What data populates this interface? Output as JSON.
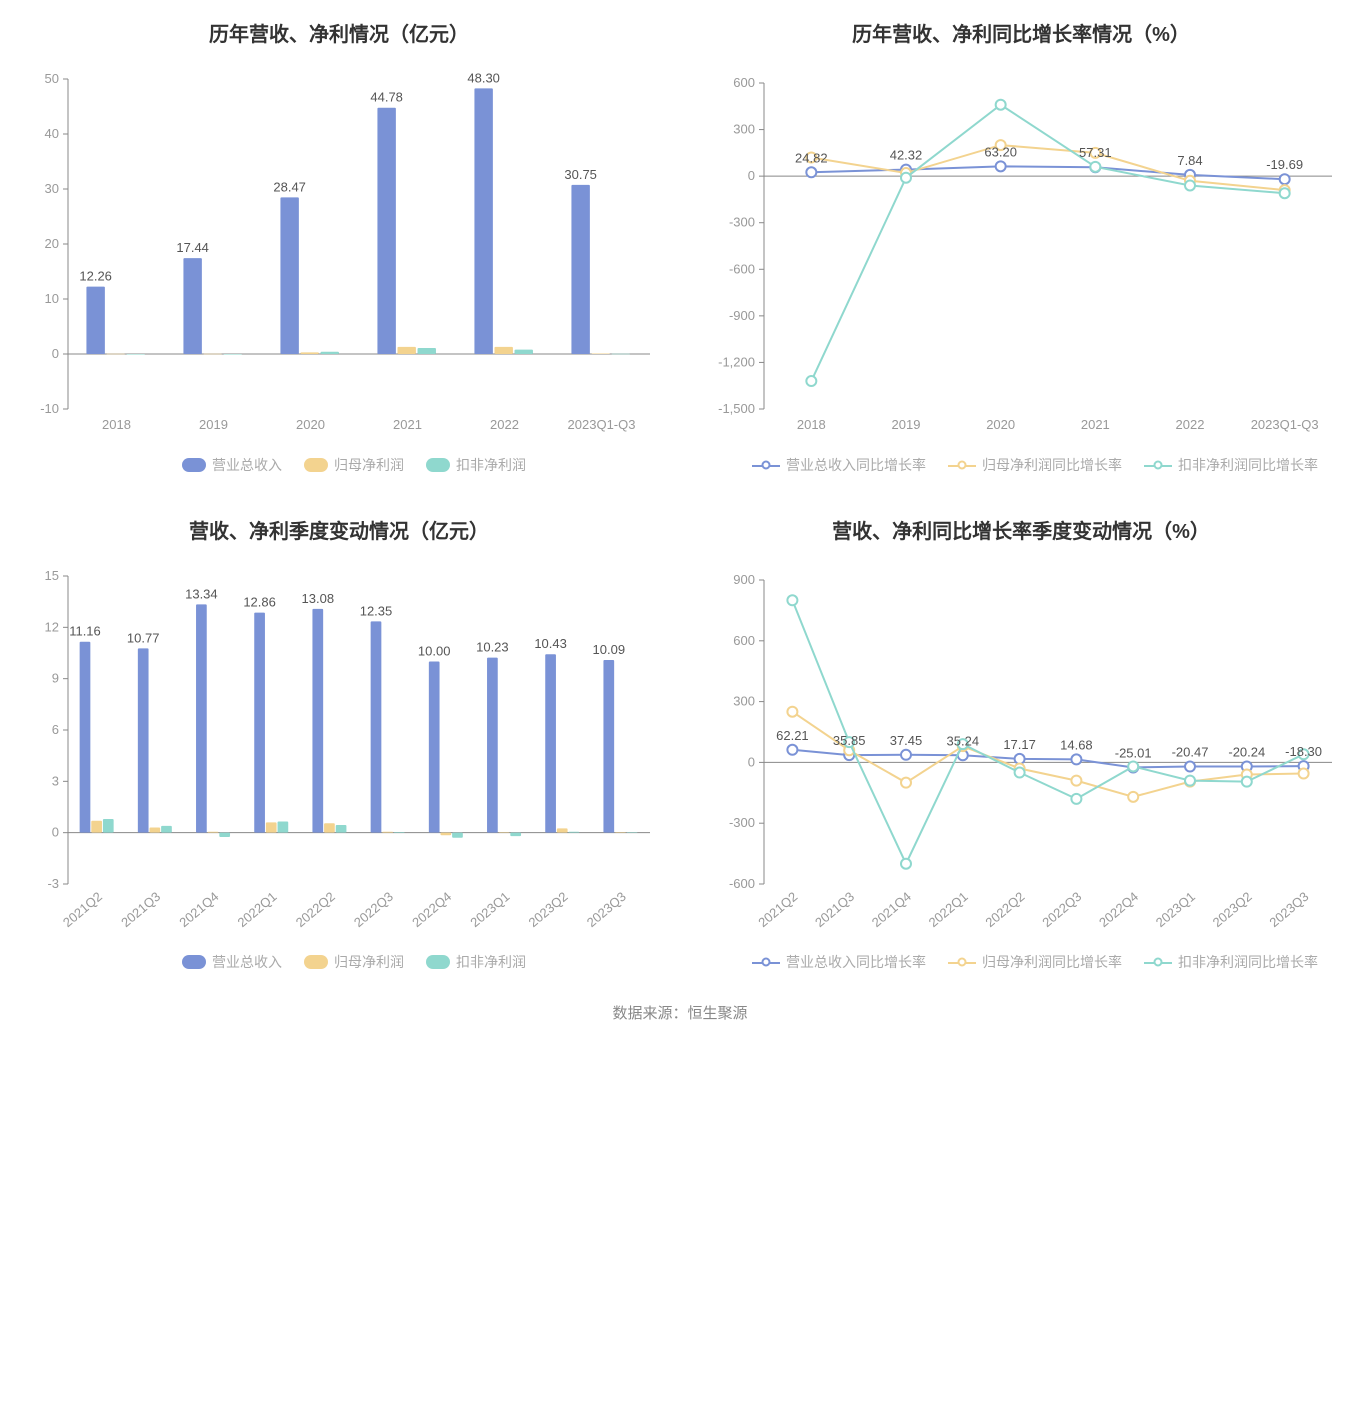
{
  "footer": "数据来源：恒生聚源",
  "colors": {
    "bar1": "#7a92d6",
    "bar2": "#f3d38f",
    "bar3": "#8fd8ce",
    "line1": "#7a92d6",
    "line2": "#f3d38f",
    "line3": "#8fd8ce",
    "axis": "#888888",
    "tick": "#999999",
    "text": "#555555",
    "bg": "#ffffff"
  },
  "chart1": {
    "title": "历年营收、净利情况（亿元）",
    "type": "bar",
    "categories": [
      "2018",
      "2019",
      "2020",
      "2021",
      "2022",
      "2023Q1-Q3"
    ],
    "series": [
      {
        "name": "营业总收入",
        "color_key": "bar1",
        "values": [
          12.26,
          17.44,
          28.47,
          44.78,
          48.3,
          30.75
        ]
      },
      {
        "name": "归母净利润",
        "color_key": "bar2",
        "values": [
          0.05,
          0.05,
          0.3,
          1.3,
          1.3,
          0.1
        ]
      },
      {
        "name": "扣非净利润",
        "color_key": "bar3",
        "values": [
          -0.05,
          -0.05,
          0.4,
          1.1,
          0.8,
          0.05
        ]
      }
    ],
    "labels": [
      "12.26",
      "17.44",
      "28.47",
      "44.78",
      "48.30",
      "30.75"
    ],
    "ylim": [
      -10,
      50
    ],
    "yticks": [
      -10,
      0,
      10,
      20,
      30,
      40,
      50
    ],
    "bar_cluster_width": 0.62,
    "label_fontsize": 13,
    "title_fontsize": 20
  },
  "chart2": {
    "title": "历年营收、净利同比增长率情况（%）",
    "type": "line",
    "categories": [
      "2018",
      "2019",
      "2020",
      "2021",
      "2022",
      "2023Q1-Q3"
    ],
    "series": [
      {
        "name": "营业总收入同比增长率",
        "color_key": "line1",
        "values": [
          24.82,
          42.32,
          63.2,
          57.31,
          7.84,
          -19.69
        ]
      },
      {
        "name": "归母净利润同比增长率",
        "color_key": "line2",
        "values": [
          120,
          20,
          200,
          150,
          -30,
          -90
        ]
      },
      {
        "name": "扣非净利润同比增长率",
        "color_key": "line3",
        "values": [
          -1320,
          -10,
          460,
          60,
          -60,
          -110
        ]
      }
    ],
    "labels": [
      "24.82",
      "42.32",
      "63.20",
      "57.31",
      "7.84",
      "-19.69"
    ],
    "ylim": [
      -1500,
      600
    ],
    "yticks": [
      -1500,
      -1200,
      -900,
      -600,
      -300,
      0,
      300,
      600
    ],
    "marker_radius": 5,
    "line_width": 2,
    "label_fontsize": 13,
    "title_fontsize": 20
  },
  "chart3": {
    "title": "营收、净利季度变动情况（亿元）",
    "type": "bar",
    "categories": [
      "2021Q2",
      "2021Q3",
      "2021Q4",
      "2022Q1",
      "2022Q2",
      "2022Q3",
      "2022Q4",
      "2023Q1",
      "2023Q2",
      "2023Q3"
    ],
    "rotate_x": true,
    "series": [
      {
        "name": "营业总收入",
        "color_key": "bar1",
        "values": [
          11.16,
          10.77,
          13.34,
          12.86,
          13.08,
          12.35,
          10.0,
          10.23,
          10.43,
          10.09
        ]
      },
      {
        "name": "归母净利润",
        "color_key": "bar2",
        "values": [
          0.7,
          0.3,
          0.05,
          0.6,
          0.55,
          0.05,
          -0.15,
          0.03,
          0.25,
          0.03
        ]
      },
      {
        "name": "扣非净利润",
        "color_key": "bar3",
        "values": [
          0.8,
          0.4,
          -0.25,
          0.65,
          0.45,
          0.04,
          -0.3,
          -0.2,
          0.05,
          0.02
        ]
      }
    ],
    "labels": [
      "11.16",
      "10.77",
      "13.34",
      "12.86",
      "13.08",
      "12.35",
      "10.00",
      "10.23",
      "10.43",
      "10.09"
    ],
    "ylim": [
      -3,
      15
    ],
    "yticks": [
      -3,
      0,
      3,
      6,
      9,
      12,
      15
    ],
    "bar_cluster_width": 0.6,
    "label_fontsize": 13,
    "title_fontsize": 20
  },
  "chart4": {
    "title": "营收、净利同比增长率季度变动情况（%）",
    "type": "line",
    "categories": [
      "2021Q2",
      "2021Q3",
      "2021Q4",
      "2022Q1",
      "2022Q2",
      "2022Q3",
      "2022Q4",
      "2023Q1",
      "2023Q2",
      "2023Q3"
    ],
    "rotate_x": true,
    "series": [
      {
        "name": "营业总收入同比增长率",
        "color_key": "line1",
        "values": [
          62.21,
          35.85,
          37.45,
          35.24,
          17.17,
          14.68,
          -25.01,
          -20.47,
          -20.24,
          -18.3
        ]
      },
      {
        "name": "归母净利润同比增长率",
        "color_key": "line2",
        "values": [
          250,
          60,
          -100,
          80,
          -30,
          -90,
          -170,
          -95,
          -60,
          -55
        ]
      },
      {
        "name": "扣非净利润同比增长率",
        "color_key": "line3",
        "values": [
          800,
          100,
          -500,
          90,
          -50,
          -180,
          -20,
          -90,
          -95,
          40
        ]
      }
    ],
    "labels": [
      "62.21",
      "35.85",
      "37.45",
      "35.24",
      "17.17",
      "14.68",
      "25.01",
      "20.47",
      "20.24",
      "18.30"
    ],
    "label_prefix": [
      "",
      "",
      "",
      "",
      "",
      "",
      "-",
      "-",
      "-",
      "-"
    ],
    "ylim": [
      -600,
      900
    ],
    "yticks": [
      -600,
      -300,
      0,
      300,
      600,
      900
    ],
    "marker_radius": 5,
    "line_width": 2,
    "label_fontsize": 13,
    "title_fontsize": 20
  }
}
